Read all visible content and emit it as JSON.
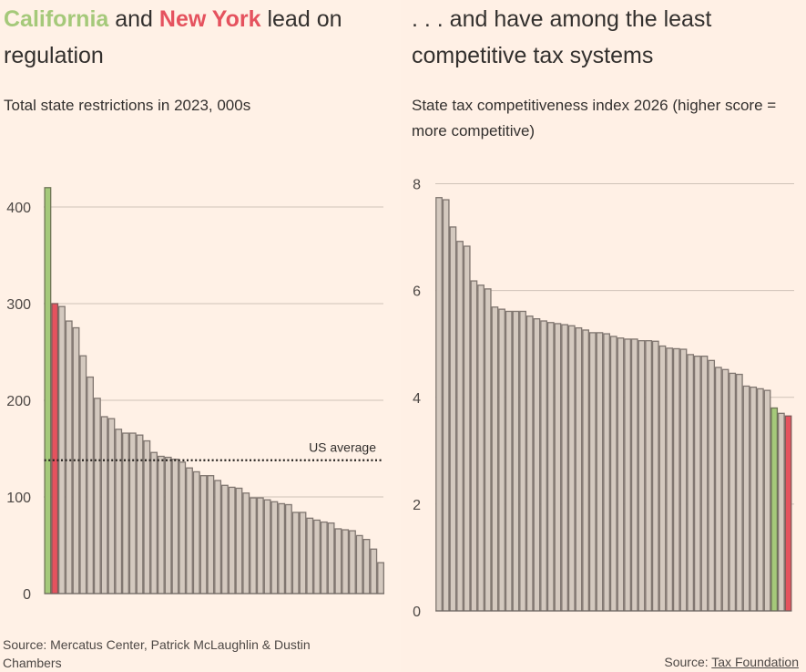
{
  "colors": {
    "background": "#FFF1E5",
    "highlight_california": "#A5C97A",
    "highlight_new_york": "#E5525E",
    "bar_default": "#D4C9BF",
    "bar_stroke": "#807670",
    "gridline": "#CFC2B8"
  },
  "left": {
    "title_ca": "California",
    "title_and": " and ",
    "title_ny": "New York",
    "title_rest": " lead on regulation",
    "subtitle": "Total state restrictions in 2023, 000s",
    "source": "Source: Mercatus Center, Patrick McLaughlin & Dustin Chambers"
  },
  "right": {
    "title": ". . . and have among the least competitive tax systems",
    "subtitle": "State tax competitiveness index 2026 (higher score = more competitive)",
    "source_prefix": "Source: ",
    "source_link": "Tax Foundation"
  },
  "chart_data": [
    {
      "type": "bar",
      "title": "California and New York lead on regulation",
      "subtitle": "Total state restrictions in 2023, 000s",
      "xlabel": "",
      "ylabel": "",
      "ylim": [
        0,
        420
      ],
      "yticks": [
        0,
        100,
        200,
        300,
        400
      ],
      "grid": true,
      "sorted": "descending",
      "highlights": [
        {
          "name": "California",
          "index": 0,
          "color": "#A5C97A"
        },
        {
          "name": "New York",
          "index": 1,
          "color": "#E5525E"
        }
      ],
      "reference_line": {
        "label": "US average",
        "value": 138,
        "style": "dotted"
      },
      "values": [
        420,
        300,
        297,
        282,
        275,
        246,
        224,
        202,
        183,
        181,
        170,
        166,
        166,
        164,
        158,
        146,
        142,
        141,
        139,
        136,
        130,
        126,
        122,
        122,
        117,
        112,
        110,
        109,
        104,
        99,
        99,
        97,
        95,
        93,
        92,
        84,
        84,
        78,
        76,
        74,
        73,
        67,
        66,
        65,
        60,
        56,
        46,
        32
      ]
    },
    {
      "type": "bar",
      "title": ". . . and have among the least competitive tax systems",
      "subtitle": "State tax competitiveness index 2026 (higher score = more competitive)",
      "xlabel": "",
      "ylabel": "",
      "ylim": [
        0,
        8
      ],
      "yticks": [
        0,
        2,
        4,
        6,
        8
      ],
      "grid": true,
      "sorted": "descending",
      "highlights": [
        {
          "name": "California",
          "index": 48,
          "color": "#A5C97A"
        },
        {
          "name": "New York",
          "index": 50,
          "color": "#E5525E"
        }
      ],
      "values": [
        7.74,
        7.7,
        7.19,
        6.92,
        6.83,
        6.18,
        6.1,
        6.03,
        5.69,
        5.65,
        5.61,
        5.61,
        5.61,
        5.52,
        5.47,
        5.43,
        5.4,
        5.38,
        5.36,
        5.34,
        5.3,
        5.26,
        5.21,
        5.21,
        5.19,
        5.14,
        5.11,
        5.09,
        5.09,
        5.06,
        5.06,
        5.05,
        4.96,
        4.92,
        4.91,
        4.9,
        4.8,
        4.77,
        4.77,
        4.69,
        4.56,
        4.52,
        4.45,
        4.43,
        4.21,
        4.19,
        4.16,
        4.13,
        3.8,
        3.7,
        3.65
      ]
    }
  ]
}
